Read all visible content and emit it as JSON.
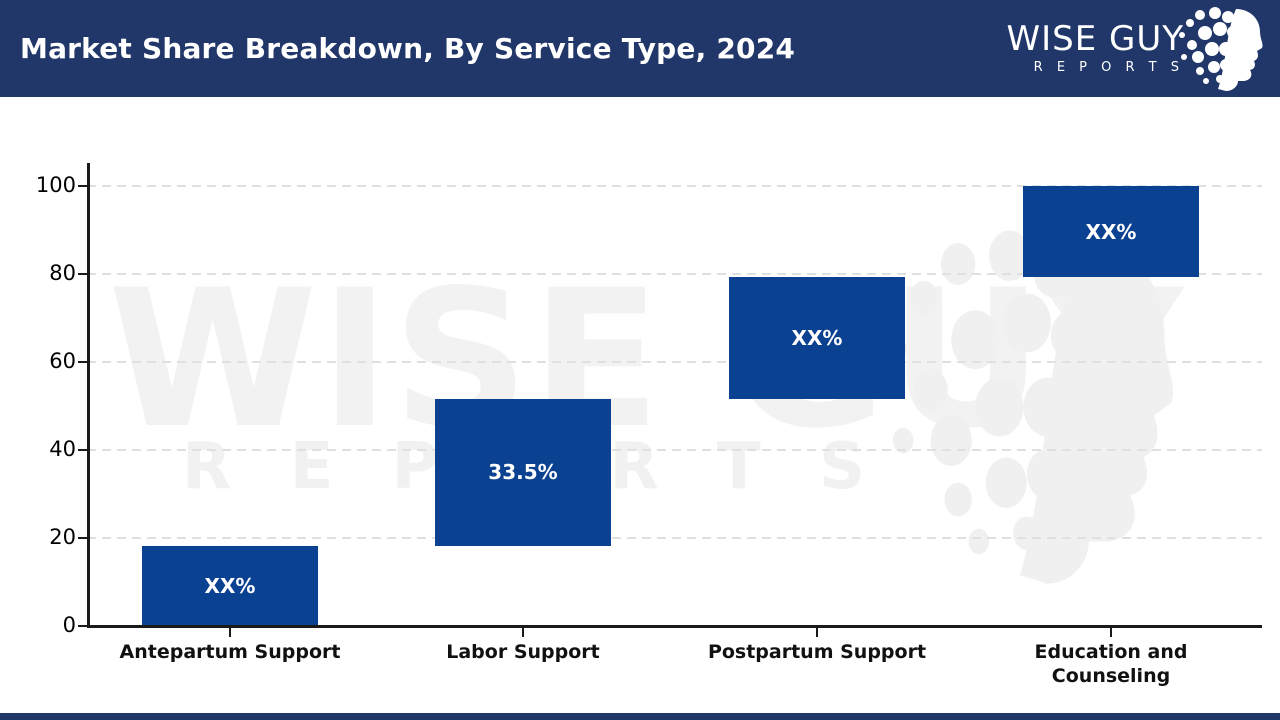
{
  "header": {
    "title": "Market Share Breakdown, By Service Type, 2024",
    "logo": {
      "line1": "WISE GUY",
      "line2": "R E P O R T S"
    }
  },
  "watermark": {
    "line1": "WISE GUY",
    "line2": "R E P O R T S"
  },
  "colors": {
    "header_bg": "#213769",
    "footer_bg": "#213769",
    "bar": "#0b4191",
    "axis": "#1a1a1a",
    "grid": "#e0e0e0",
    "title_text": "#ffffff",
    "bar_label_text": "#ffffff",
    "watermark": "#f2f2f2"
  },
  "chart_data": {
    "type": "bar",
    "subtype": "waterfall-floating-bars",
    "title": "Market Share Breakdown, By Service Type, 2024",
    "categories": [
      "Antepartum Support",
      "Labor Support",
      "Postpartum Support",
      "Education and Counseling"
    ],
    "category_lines": [
      [
        "Antepartum Support"
      ],
      [
        "Labor Support"
      ],
      [
        "Postpartum Support"
      ],
      [
        "Education and",
        "Counseling"
      ]
    ],
    "segments": [
      {
        "category": "Antepartum Support",
        "start": 0,
        "end": 18.2,
        "label": "XX%"
      },
      {
        "category": "Labor Support",
        "start": 18.2,
        "end": 51.7,
        "label": "33.5%"
      },
      {
        "category": "Postpartum Support",
        "start": 51.7,
        "end": 79.3,
        "label": "XX%"
      },
      {
        "category": "Education and Counseling",
        "start": 79.3,
        "end": 100,
        "label": "XX%"
      }
    ],
    "xlabel": "",
    "ylabel": "",
    "ylim": [
      0,
      100
    ],
    "yticks": [
      0,
      20,
      40,
      60,
      80,
      100
    ],
    "grid": "horizontal-dashed",
    "legend": "none"
  }
}
